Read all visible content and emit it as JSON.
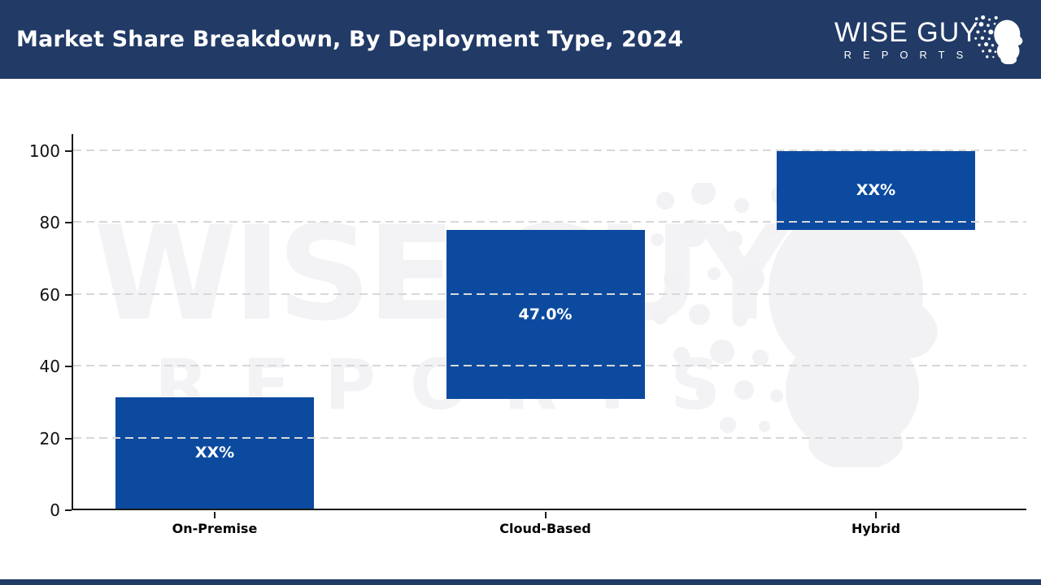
{
  "header": {
    "title": "Market Share Breakdown, By Deployment Type, 2024",
    "logo": {
      "wordmark": "WISE GUY",
      "subtitle": "REPORTS"
    }
  },
  "watermark": {
    "line1": "WISE GUY",
    "line2": "REPORTS"
  },
  "colors": {
    "header_bg": "#213a66",
    "bar_fill": "#0b4a9f",
    "grid_line": "#d8d8d8",
    "axis_line": "#1a1a1a",
    "bar_label": "#ffffff",
    "watermark_text": "#f3f3f6"
  },
  "chart_data": {
    "type": "bar",
    "subtype": "floating-segment-waterfall",
    "title": "Market Share Breakdown, By Deployment Type, 2024",
    "categories": [
      "On-Premise",
      "Cloud-Based",
      "Hybrid"
    ],
    "bars": [
      {
        "category": "On-Premise",
        "start": 0,
        "end": 31,
        "value": 31,
        "label": "XX%"
      },
      {
        "category": "Cloud-Based",
        "start": 31,
        "end": 78,
        "value": 47,
        "label": "47.0%"
      },
      {
        "category": "Hybrid",
        "start": 78,
        "end": 100,
        "value": 22,
        "label": "XX%"
      }
    ],
    "yticks": [
      0,
      20,
      40,
      60,
      80,
      100
    ],
    "ylim": [
      0,
      104.6
    ],
    "xlabel": "",
    "ylabel": "",
    "grid": "horizontal-dashed-over-bars",
    "legend": "none"
  }
}
